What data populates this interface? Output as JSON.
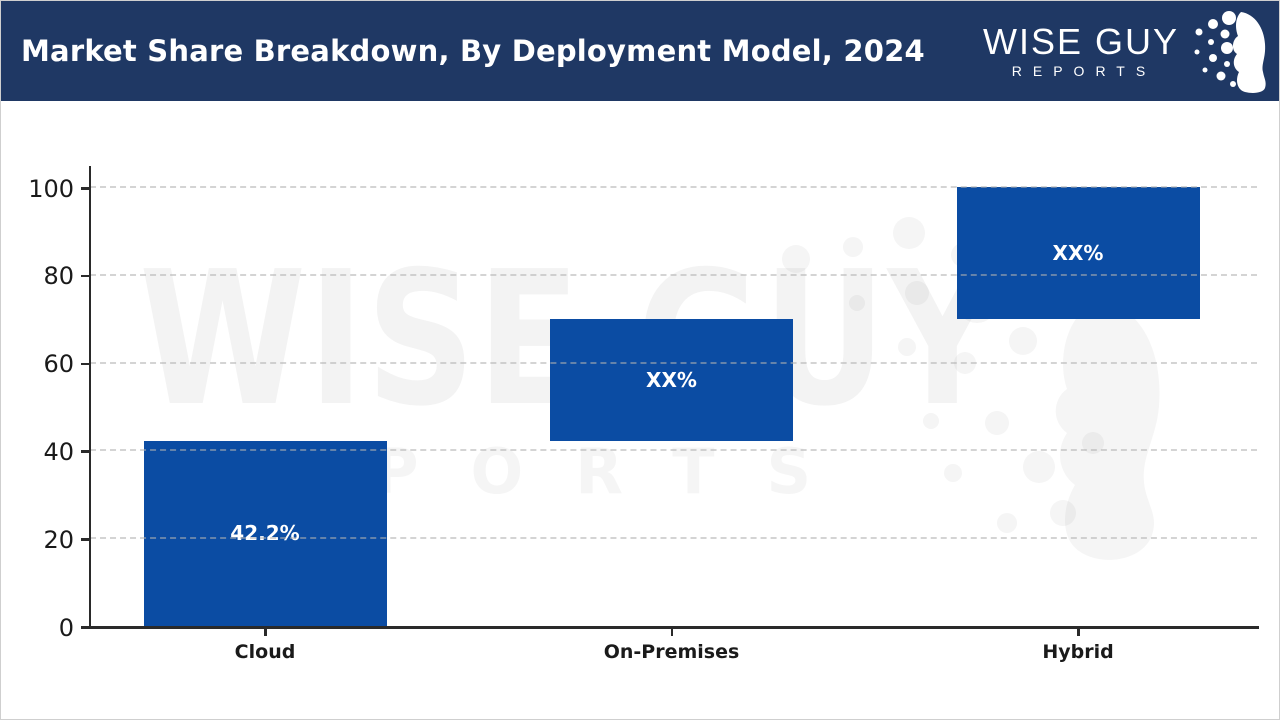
{
  "header": {
    "title": "Market Share Breakdown, By Deployment Model, 2024",
    "bg_color": "#1F3864",
    "logo": {
      "line1": "WISE GUY",
      "line2": "REPORTS"
    }
  },
  "watermark": {
    "line1": "WISE GUY",
    "line2": "REPORTS"
  },
  "chart_data": {
    "type": "bar",
    "subtype": "floating-stacked-percentage",
    "title": "Market Share Breakdown, By Deployment Model, 2024",
    "categories": [
      "Cloud",
      "On-Premises",
      "Hybrid"
    ],
    "bars": [
      {
        "category": "Cloud",
        "start": 0,
        "end": 42.2,
        "label": "42.2%"
      },
      {
        "category": "On-Premises",
        "start": 42.2,
        "end": 70,
        "label": "XX%"
      },
      {
        "category": "Hybrid",
        "start": 70,
        "end": 100,
        "label": "XX%"
      }
    ],
    "bar_color": "#0B4CA3",
    "bar_label_color": "#FFFFFF",
    "xlabel": "",
    "ylabel": "",
    "ylim": [
      0,
      100
    ],
    "yticks": [
      0,
      20,
      40,
      60,
      80,
      100
    ],
    "grid": "horizontal-dashed",
    "grid_over_bars": true,
    "legend": "none"
  }
}
